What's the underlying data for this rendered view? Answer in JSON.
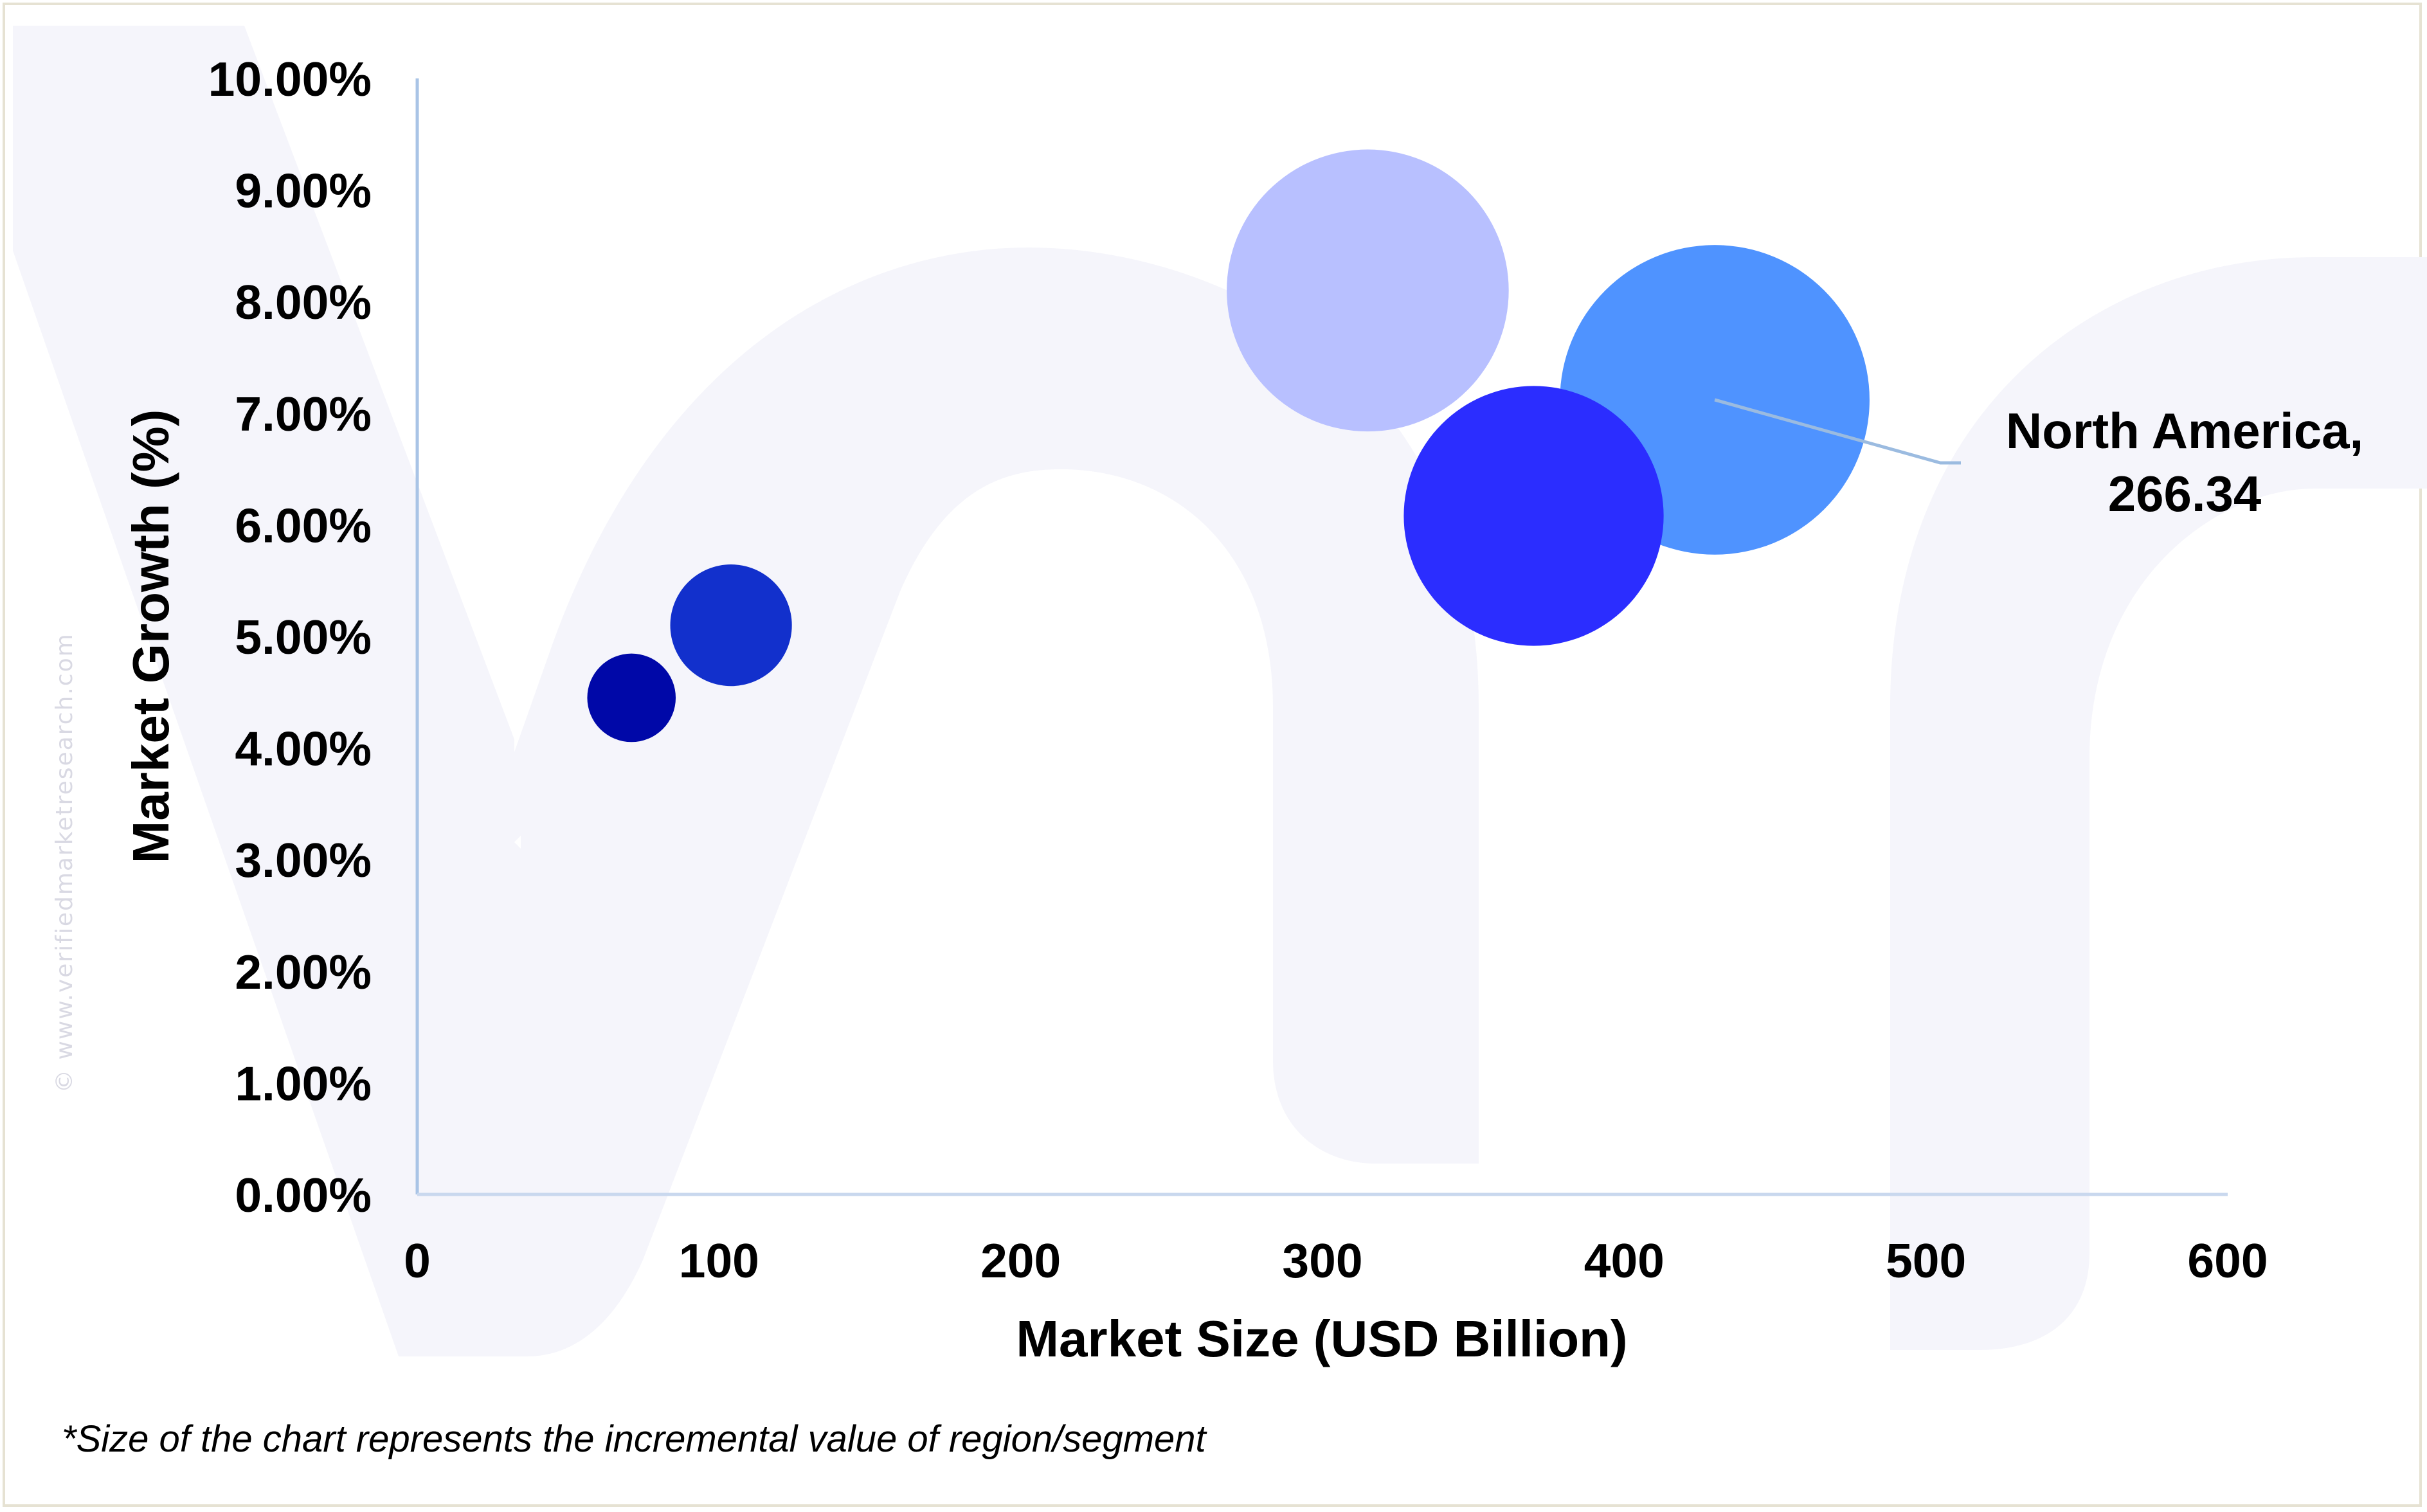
{
  "chart_data": {
    "type": "bubble",
    "xlabel": "Market Size (USD Billion)",
    "ylabel": "Market Growth (%)",
    "xlim": [
      0,
      600
    ],
    "ylim": [
      0,
      10
    ],
    "x_ticks": [
      0,
      100,
      200,
      300,
      400,
      500,
      600
    ],
    "x_tick_labels": [
      "0",
      "100",
      "200",
      "300",
      "400",
      "500",
      "600"
    ],
    "y_ticks": [
      0,
      1,
      2,
      3,
      4,
      5,
      6,
      7,
      8,
      9,
      10
    ],
    "y_tick_labels": [
      "0.00%",
      "1.00%",
      "2.00%",
      "3.00%",
      "4.00%",
      "5.00%",
      "6.00%",
      "7.00%",
      "8.00%",
      "9.00%",
      "10.00%"
    ],
    "grid": false,
    "points": [
      {
        "x": 71,
        "y": 4.45,
        "size": 16,
        "color": "#0008a8"
      },
      {
        "x": 104,
        "y": 5.1,
        "size": 22,
        "color": "#1230cc"
      },
      {
        "x": 315,
        "y": 8.1,
        "size": 51,
        "color": "#b8c0ff"
      },
      {
        "x": 430,
        "y": 7.12,
        "size": 56,
        "color": "#4f93ff"
      },
      {
        "x": 370,
        "y": 6.08,
        "size": 47,
        "color": "#2b2dff"
      }
    ],
    "annotations": [
      {
        "text_line1": "North America,",
        "text_line2": "266.34",
        "point_index": 3
      }
    ]
  },
  "watermark": {
    "text": "© www.verifiedmarketresearch.com",
    "logo_color": "#f6f6fb"
  },
  "footnote": "*Size of the chart represents the incremental value of region/segment",
  "colors": {
    "axis": "#a9c4e6",
    "leader_line": "#9bbbe0"
  }
}
